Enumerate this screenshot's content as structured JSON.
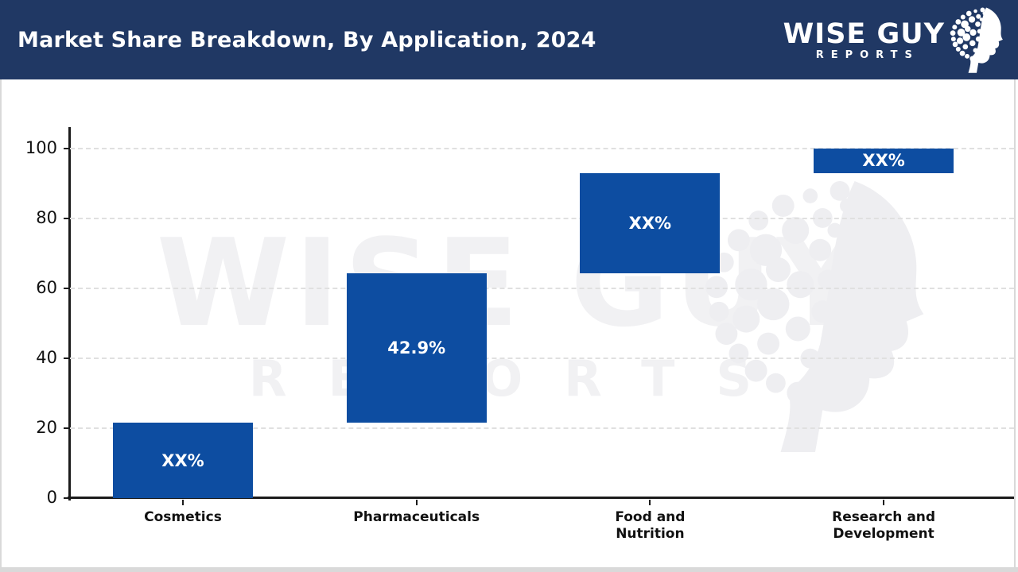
{
  "header": {
    "title": "Market Share Breakdown, By Application, 2024",
    "bg_color": "#203864",
    "logo": {
      "line1": "WISE GUY",
      "line2": "REPORTS"
    }
  },
  "watermark": {
    "line1": "WISE GUY",
    "line2": "REPORTS"
  },
  "chart_data": {
    "type": "bar",
    "subtype": "floating-waterfall",
    "title": "Market Share Breakdown, By Application, 2024",
    "categories": [
      "Cosmetics",
      "Pharmaceuticals",
      "Food and Nutrition",
      "Research and Development"
    ],
    "segments": [
      {
        "category": "Cosmetics",
        "start": 0,
        "end": 21.5,
        "value": 21.5,
        "label": "XX%"
      },
      {
        "category": "Pharmaceuticals",
        "start": 21.5,
        "end": 64.4,
        "value": 42.9,
        "label": "42.9%"
      },
      {
        "category": "Food and Nutrition",
        "start": 64.4,
        "end": 93.0,
        "value": 28.6,
        "label": "XX%"
      },
      {
        "category": "Research and Development",
        "start": 93.0,
        "end": 100.0,
        "value": 7.0,
        "label": "XX%"
      }
    ],
    "xlabel": "",
    "ylabel": "",
    "y_ticks": [
      0,
      20,
      40,
      60,
      80,
      100
    ],
    "ylim": [
      0,
      106
    ],
    "grid": "horizontal-dashed",
    "legend": "none",
    "bar_color": "#0d4da1",
    "axis_color": "#1b1b1b",
    "grid_color": "#e0e0e0"
  }
}
